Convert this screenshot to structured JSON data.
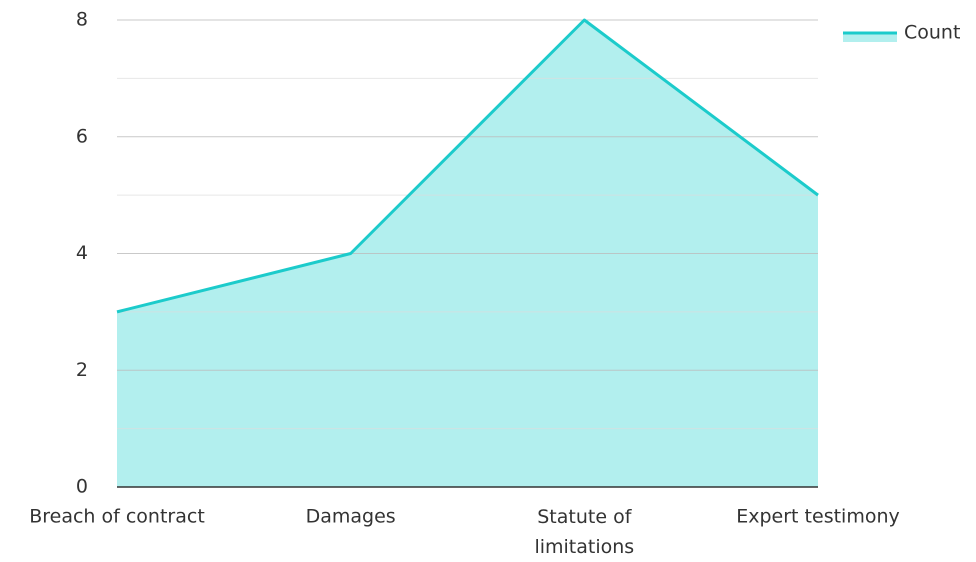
{
  "chart_data": {
    "type": "area",
    "categories": [
      "Breach of contract",
      "Damages",
      "Statute of limitations",
      "Expert testimony"
    ],
    "series": [
      {
        "name": "Count",
        "color": "#1ccbcb",
        "fill": "#b2efee",
        "values": [
          3,
          4,
          8,
          5
        ]
      }
    ],
    "ylim": [
      0,
      8
    ],
    "yticks": [
      0,
      2,
      4,
      6,
      8
    ],
    "grid": true,
    "legend": "top-right"
  }
}
